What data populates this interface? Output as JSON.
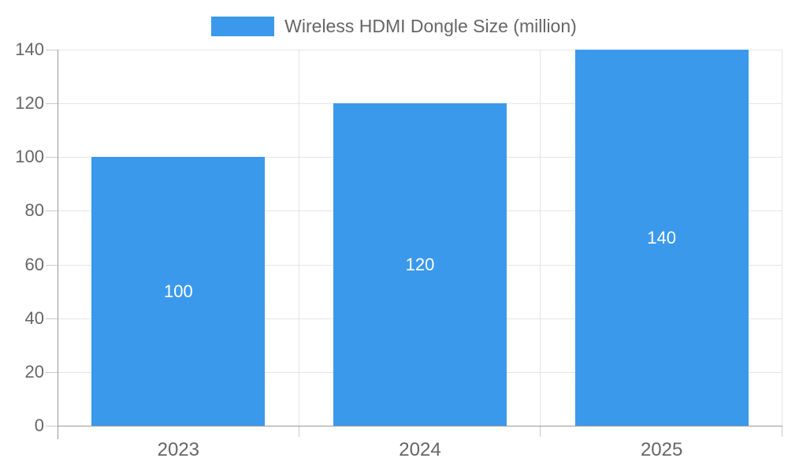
{
  "legend": {
    "label": "Wireless HDMI Dongle Size (million)"
  },
  "chart_data": {
    "type": "bar",
    "title": "",
    "categories": [
      "2023",
      "2024",
      "2025"
    ],
    "series": [
      {
        "name": "Wireless HDMI Dongle Size (million)",
        "values": [
          100,
          120,
          140
        ]
      }
    ],
    "data_labels": [
      100,
      120,
      140
    ],
    "data_label_position": "inside-center",
    "xlabel": "",
    "ylabel": "",
    "ylim": [
      0,
      140
    ],
    "ytick_step": 20,
    "ytick_labels": [
      "0",
      "20",
      "40",
      "60",
      "80",
      "100",
      "120",
      "140"
    ],
    "grid": true,
    "legend_position": "top-center",
    "colors": {
      "bar": "#3b99ec",
      "data_label": "#ffffff",
      "axis_line": "#999999",
      "tick": "#c9c9c9",
      "gridline": "#e5e5e5",
      "axis_text": "#666666",
      "legend_text": "#666666",
      "background": "#ffffff"
    }
  }
}
